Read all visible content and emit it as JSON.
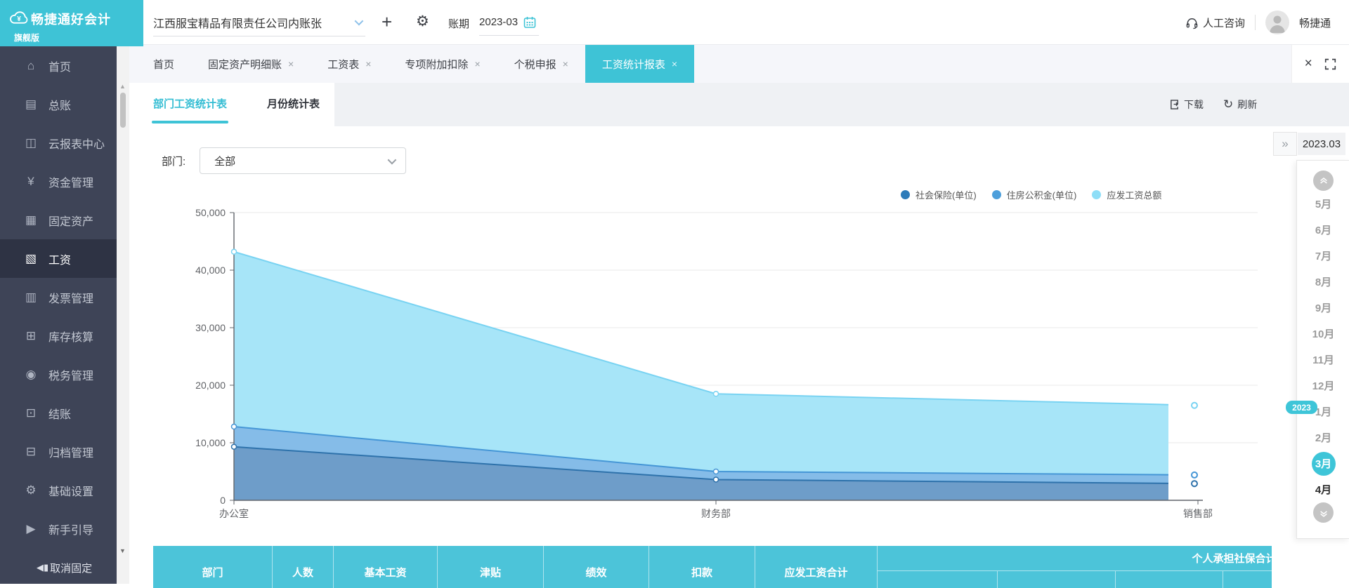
{
  "brand": {
    "title": "畅捷通好会计",
    "edition": "旗舰版"
  },
  "header": {
    "company": "江西服宝精品有限责任公司内账张",
    "period_label": "账期",
    "period_value": "2023-03",
    "consult_label": "人工咨询",
    "username": "畅捷通"
  },
  "tab_bar": {
    "tabs": [
      {
        "label": "首页",
        "closable": false,
        "active": false
      },
      {
        "label": "固定资产明细账",
        "closable": true,
        "active": false
      },
      {
        "label": "工资表",
        "closable": true,
        "active": false
      },
      {
        "label": "专项附加扣除",
        "closable": true,
        "active": false
      },
      {
        "label": "个税申报",
        "closable": true,
        "active": false
      },
      {
        "label": "工资统计报表",
        "closable": true,
        "active": true
      }
    ]
  },
  "sidebar": {
    "items": [
      {
        "label": "首页",
        "icon": "home-icon",
        "glyph": "⌂",
        "active": false
      },
      {
        "label": "总账",
        "icon": "ledger-icon",
        "glyph": "▤",
        "active": false
      },
      {
        "label": "云报表中心",
        "icon": "cloud-report-icon",
        "glyph": "◫",
        "active": false
      },
      {
        "label": "资金管理",
        "icon": "funds-icon",
        "glyph": "¥",
        "active": false
      },
      {
        "label": "固定资产",
        "icon": "fixed-assets-icon",
        "glyph": "▦",
        "active": false
      },
      {
        "label": "工资",
        "icon": "salary-icon",
        "glyph": "▧",
        "active": true
      },
      {
        "label": "发票管理",
        "icon": "invoice-icon",
        "glyph": "▥",
        "active": false
      },
      {
        "label": "库存核算",
        "icon": "inventory-icon",
        "glyph": "⊞",
        "active": false
      },
      {
        "label": "税务管理",
        "icon": "tax-icon",
        "glyph": "◉",
        "active": false
      },
      {
        "label": "结账",
        "icon": "closing-icon",
        "glyph": "⊡",
        "active": false
      },
      {
        "label": "归档管理",
        "icon": "archive-icon",
        "glyph": "⊟",
        "active": false
      },
      {
        "label": "基础设置",
        "icon": "settings-icon",
        "glyph": "⚙",
        "active": false
      },
      {
        "label": "新手引导",
        "icon": "guide-icon",
        "glyph": "▶",
        "active": false
      }
    ],
    "unpin_label": "取消固定"
  },
  "report": {
    "subtabs": [
      {
        "label": "部门工资统计表",
        "active": true
      },
      {
        "label": "月份统计表",
        "active": false
      }
    ],
    "download_label": "下载",
    "refresh_label": "刷新",
    "filter_label": "部门:",
    "filter_value": "全部"
  },
  "chart_data": {
    "type": "area",
    "categories": [
      "办公室",
      "财务部",
      "销售部"
    ],
    "series": [
      {
        "name": "社会保险(单位)",
        "values": [
          9300,
          3600,
          2900
        ],
        "line": "#2e72ab",
        "fill": "#6e9dc9",
        "dot": "#2d7bb9"
      },
      {
        "name": "住房公积金(单位)",
        "values": [
          12800,
          5000,
          4400
        ],
        "line": "#4596d6",
        "fill": "#85bce8",
        "dot": "#4d9fdb"
      },
      {
        "name": "应发工资总额",
        "values": [
          43200,
          18500,
          16500
        ],
        "line": "#79d3f2",
        "fill": "#a7e5f8",
        "dot": "#8edef7"
      }
    ],
    "ylim": [
      0,
      50000
    ],
    "ytick": 10000,
    "grid": true,
    "legend_position": "top-right",
    "note": "overlapping (non-stacked) areas; fill cut off before last category, floating ring markers at right edge"
  },
  "month_panel": {
    "current": "2023.03",
    "year_badge": "2023",
    "months": [
      "5月",
      "6月",
      "7月",
      "8月",
      "9月",
      "10月",
      "11月",
      "12月",
      "1月",
      "2月",
      "3月",
      "4月"
    ],
    "active_month": "3月",
    "dark_month": "4月"
  },
  "salary_table": {
    "columns": [
      "部门",
      "人数",
      "基本工资",
      "津贴",
      "绩效",
      "扣款",
      "应发工资合计"
    ],
    "group_header": "个人承担社保合计"
  }
}
